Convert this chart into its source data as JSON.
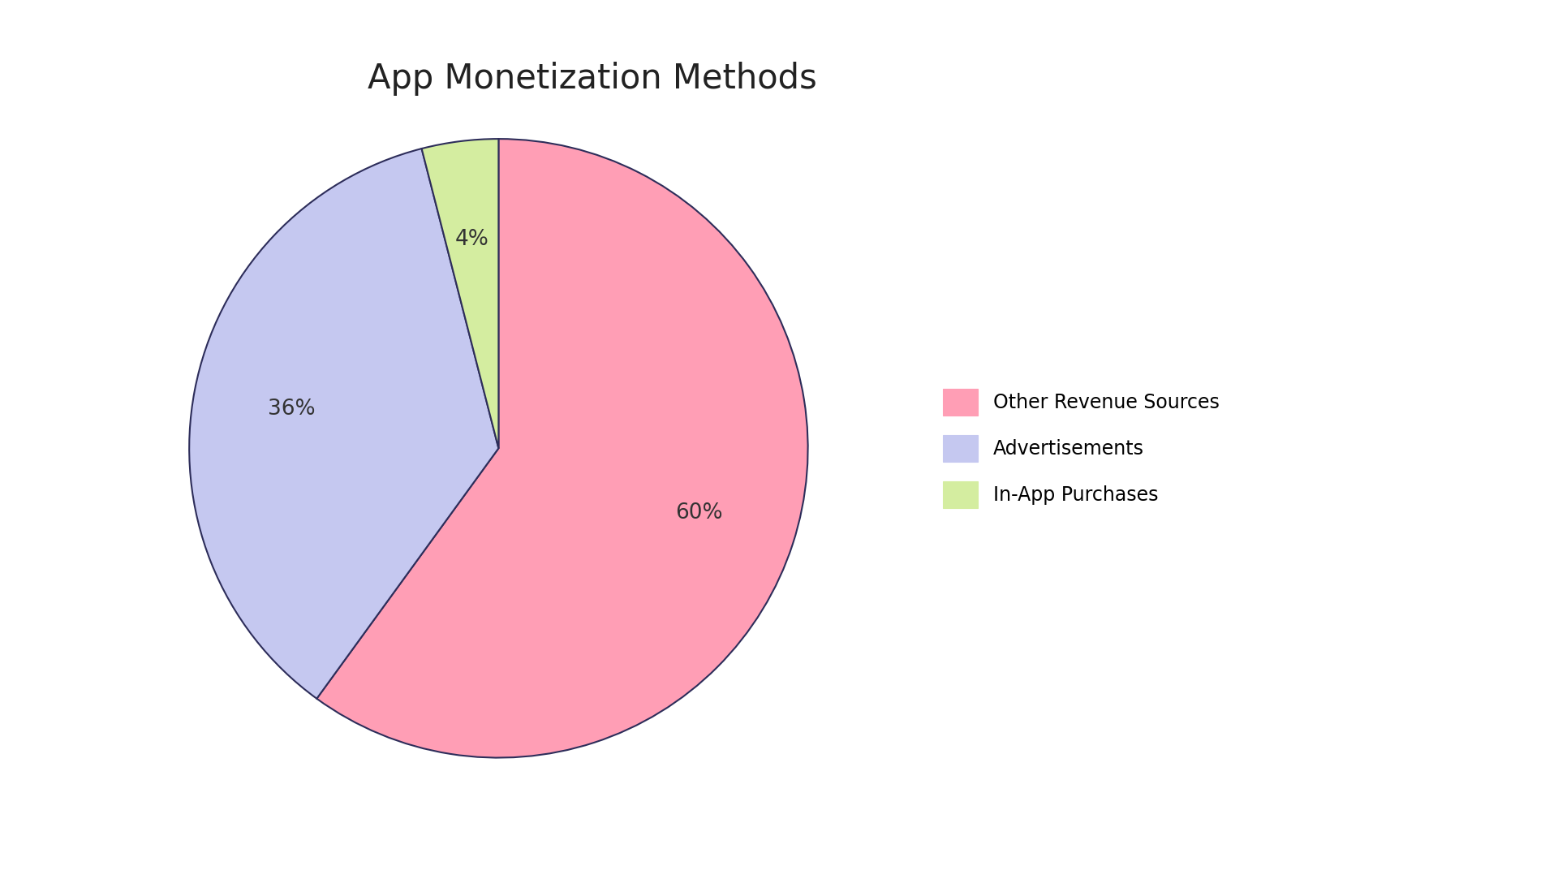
{
  "title": "App Monetization Methods",
  "labels": [
    "Other Revenue Sources",
    "Advertisements",
    "In-App Purchases"
  ],
  "values": [
    60,
    36,
    4
  ],
  "colors": [
    "#FF9EB5",
    "#C5C8F0",
    "#D4EDA0"
  ],
  "edge_color": "#2D2D5A",
  "edge_width": 1.5,
  "start_angle": 90,
  "title_fontsize": 30,
  "legend_fontsize": 17,
  "autopct_fontsize": 19,
  "background_color": "#FFFFFF"
}
